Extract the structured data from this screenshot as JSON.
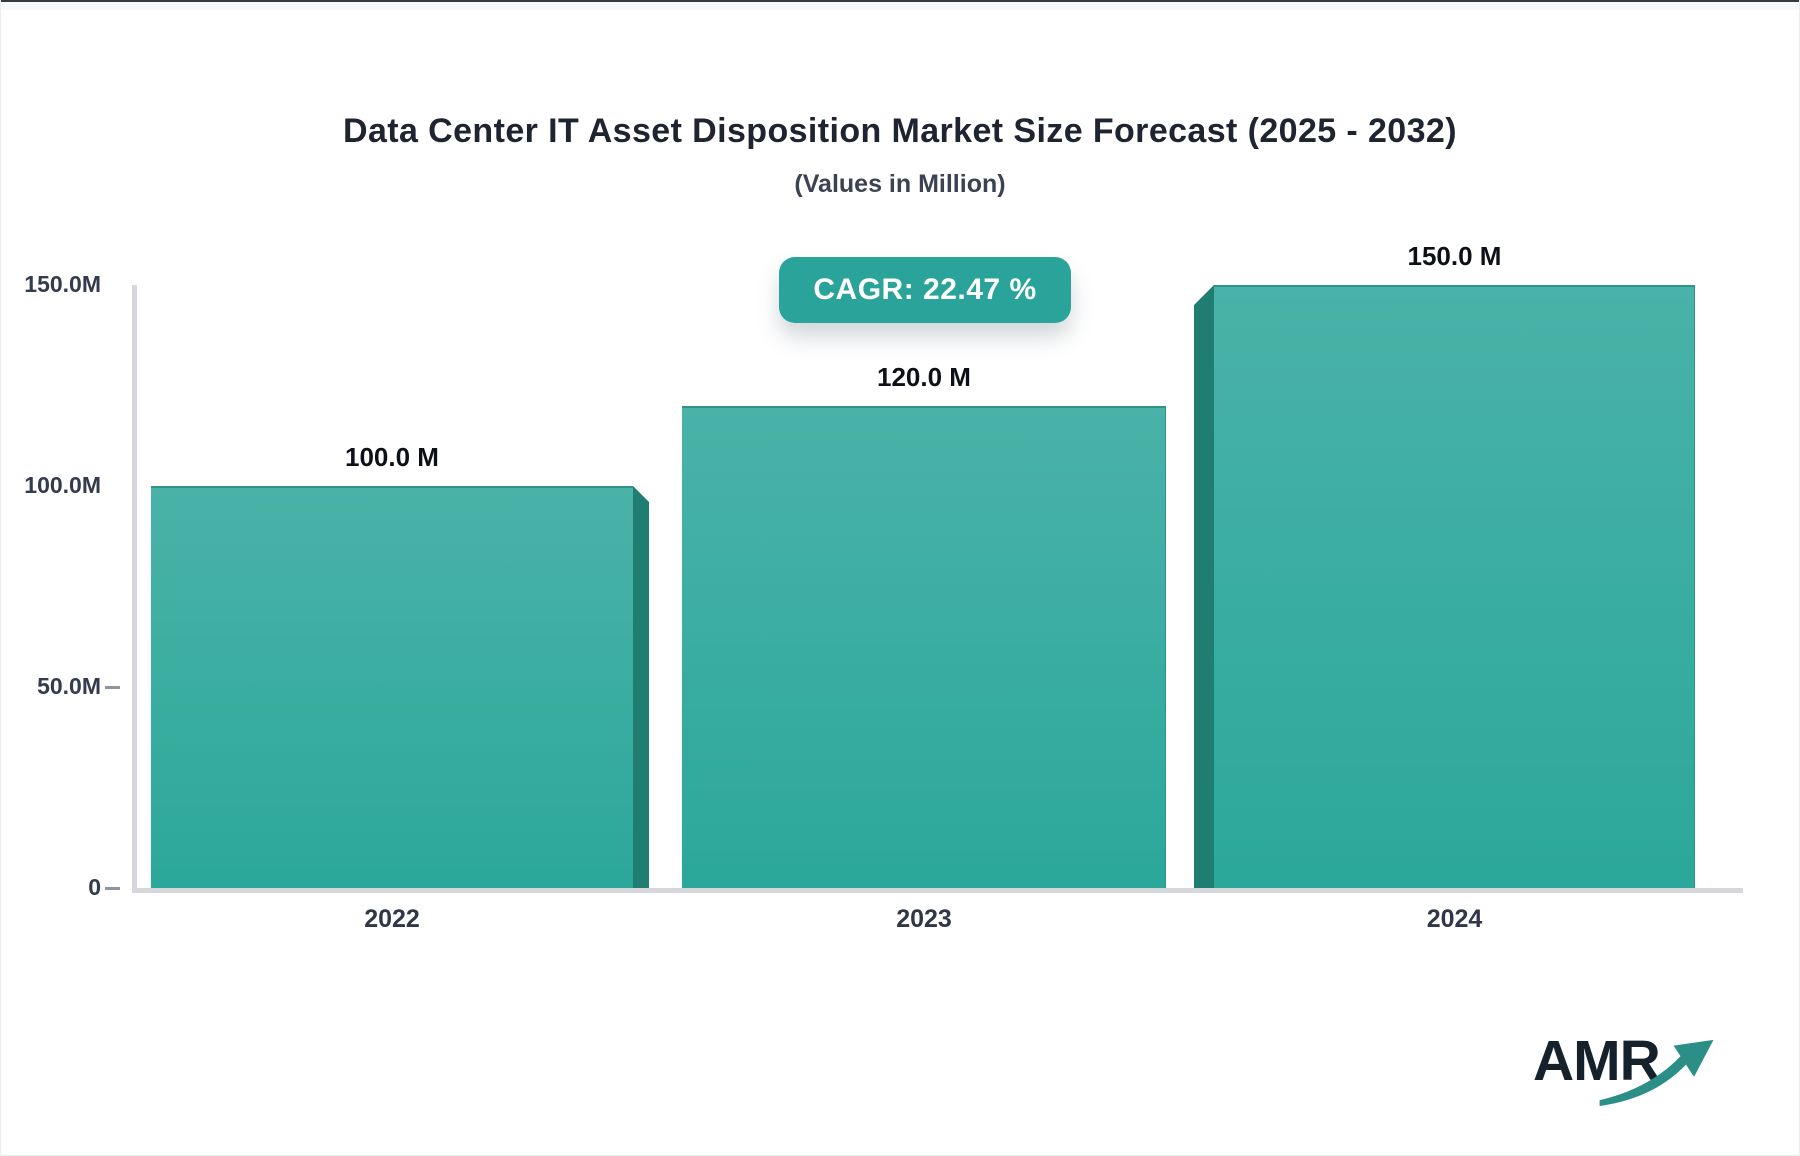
{
  "header": {
    "title": "Data Center IT Asset Disposition Market Size Forecast (2025 - 2032)",
    "subtitle": "(Values in Million)"
  },
  "cagr_badge": {
    "label": "CAGR: 22.47 %"
  },
  "chart_data": {
    "type": "bar",
    "categories": [
      "2022",
      "2023",
      "2024"
    ],
    "values": [
      100,
      120,
      150
    ],
    "bar_labels": [
      "100.0 M",
      "120.0 M",
      "150.0 M"
    ],
    "unit": "Million",
    "title": "Data Center IT Asset Disposition Market Size Forecast (2025 - 2032)",
    "subtitle": "(Values in Million)",
    "xlabel": "",
    "ylabel": "",
    "ylim": [
      0,
      150
    ],
    "grid": false,
    "legend": "none",
    "yticks": [
      {
        "label": "150.0M",
        "value": 150,
        "dash": false
      },
      {
        "label": "100.0M",
        "value": 100,
        "dash": false
      },
      {
        "label": "50.0M",
        "value": 50,
        "dash": true
      },
      {
        "label": "0",
        "value": 0,
        "dash": true
      }
    ]
  },
  "colors": {
    "bar_gradient_top": "#4ab2a8",
    "bar_gradient_bottom": "#2ba89a",
    "bar_side_shadow": "#1f7d71",
    "badge_background": "#2aa49a",
    "badge_text": "#ffffff",
    "axis_line": "#d5d7dd",
    "title_text": "#1e2430"
  },
  "logo": {
    "text": "AMR",
    "arrow_icon": "growth-arrow-icon",
    "arrow_color": "#2b8f88"
  }
}
